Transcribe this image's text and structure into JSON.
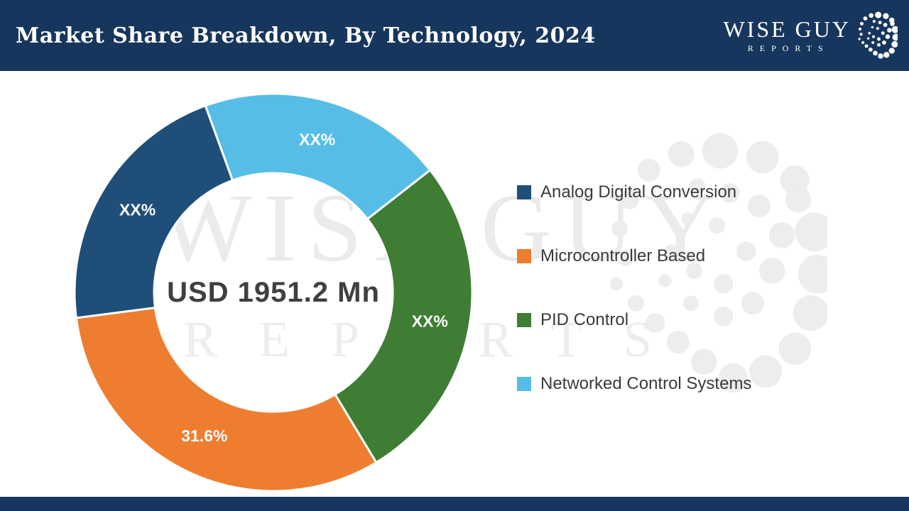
{
  "header": {
    "title": "Market Share Breakdown, By Technology, 2024",
    "logo": {
      "line1": "WISE GUY",
      "line2": "REPORTS"
    }
  },
  "watermark": {
    "line1": "WISE GUY",
    "line2": "REPORTS"
  },
  "chart_data": {
    "type": "pie",
    "variant": "donut",
    "title": "Market Share Breakdown, By Technology, 2024",
    "center_label": "USD 1951.2 Mn",
    "units": "percent",
    "legend_position": "right",
    "start_angle_deg": 110,
    "direction": "ccw",
    "inner_radius_ratio": 0.6,
    "segments": [
      {
        "label": "Analog Digital Conversion",
        "value_pct": 21.5,
        "display_label": "XX%",
        "color": "#1F4E79"
      },
      {
        "label": "Microcontroller Based",
        "value_pct": 31.6,
        "display_label": "31.6%",
        "color": "#EE7D30"
      },
      {
        "label": "PID Control",
        "value_pct": 26.9,
        "display_label": "XX%",
        "color": "#3F7D35"
      },
      {
        "label": "Networked Control Systems",
        "value_pct": 20.0,
        "display_label": "XX%",
        "color": "#56BEE6"
      }
    ]
  },
  "colors": {
    "header_bg": "#17365d",
    "footer_bg": "#17365d",
    "center_text": "#3f3f3f",
    "legend_text": "#3a3a3a",
    "watermark": "#ebebeb"
  }
}
